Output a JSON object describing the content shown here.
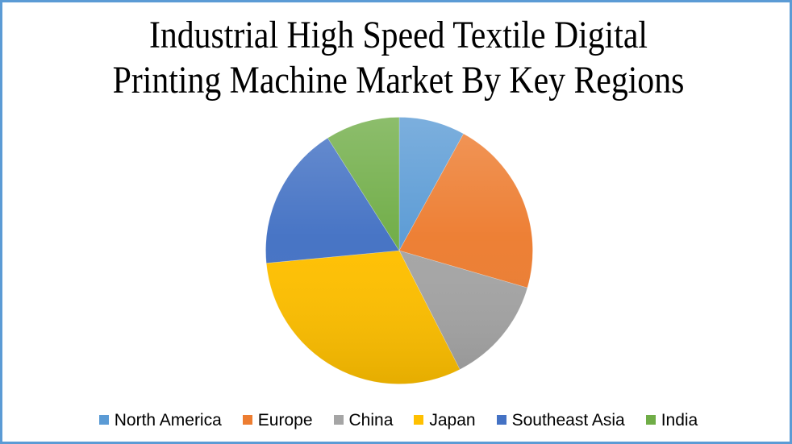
{
  "frame": {
    "border_color": "#5B9BD5",
    "background_color": "#FFFFFF"
  },
  "title": {
    "line1": "Industrial High Speed Textile Digital",
    "line2": "Printing Machine Market By Key Regions"
  },
  "chart_data": {
    "type": "pie",
    "title": "Industrial High Speed Textile Digital Printing Machine Market By Key Regions",
    "categories": [
      "North America",
      "Europe",
      "China",
      "Japan",
      "Southeast Asia",
      "India"
    ],
    "values": [
      8,
      21.5,
      13,
      31,
      17.5,
      9
    ],
    "unit": "percent (estimated from slice angles)",
    "colors": [
      "#5B9BD5",
      "#ED7D31",
      "#A5A5A5",
      "#FFC000",
      "#4472C4",
      "#70AD47"
    ],
    "start_angle_deg": 0,
    "direction": "clockwise",
    "data_labels": false,
    "legend_position": "bottom"
  }
}
